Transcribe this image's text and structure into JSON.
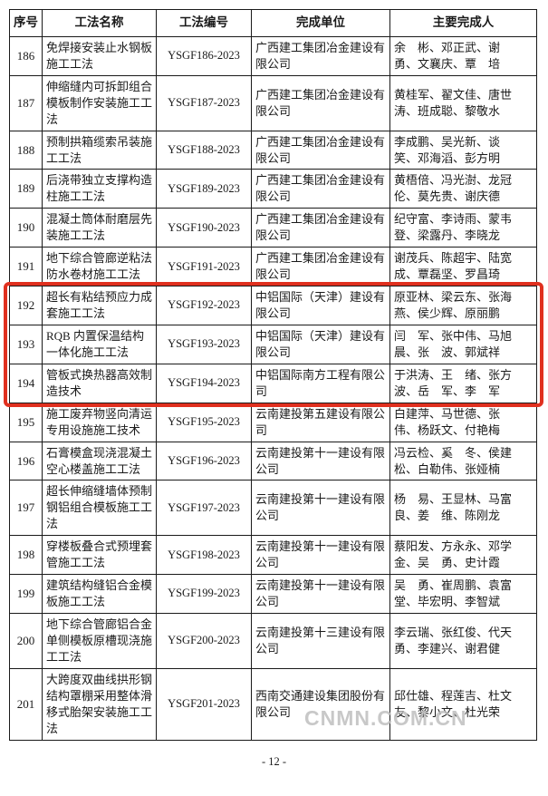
{
  "page": {
    "page_number": "- 12 -",
    "watermark": "CNMN.COM.CN",
    "highlight_color": "#e0301f"
  },
  "table": {
    "headers": [
      "序号",
      "工法名称",
      "工法编号",
      "完成单位",
      "主要完成人"
    ],
    "rows": [
      {
        "no": "186",
        "name": "免焊接安装止水钢板施工工法",
        "code": "YSGF186-2023",
        "unit": "广西建工集团冶金建设有限公司",
        "people": "余　彬、邓正武、谢　勇、文襄庆、覃　培",
        "highlighted": false
      },
      {
        "no": "187",
        "name": "伸缩缝内可拆卸组合模板制作安装施工工法",
        "code": "YSGF187-2023",
        "unit": "广西建工集团冶金建设有限公司",
        "people": "黄桂军、翟文佳、唐世涛、班成聪、黎敬水",
        "highlighted": false
      },
      {
        "no": "188",
        "name": "预制拱箱缆索吊装施工工法",
        "code": "YSGF188-2023",
        "unit": "广西建工集团冶金建设有限公司",
        "people": "李成鹏、吴光新、谈　笑、邓海滔、彭方明",
        "highlighted": false
      },
      {
        "no": "189",
        "name": "后浇带独立支撑构造柱施工工法",
        "code": "YSGF189-2023",
        "unit": "广西建工集团冶金建设有限公司",
        "people": "黄梧倍、冯光澍、龙冠伦、莫先贵、谢庆德",
        "highlighted": false
      },
      {
        "no": "190",
        "name": "混凝土筒体耐磨层先装施工工法",
        "code": "YSGF190-2023",
        "unit": "广西建工集团冶金建设有限公司",
        "people": "纪守富、李诗雨、蒙韦登、梁露丹、李晓龙",
        "highlighted": false
      },
      {
        "no": "191",
        "name": "地下综合管廊逆粘法防水卷材施工工法",
        "code": "YSGF191-2023",
        "unit": "广西建工集团冶金建设有限公司",
        "people": "谢茂兵、陈超宇、陆宽成、覃磊坚、罗昌琦",
        "highlighted": false
      },
      {
        "no": "192",
        "name": "超长有粘结预应力成套施工工法",
        "code": "YSGF192-2023",
        "unit": "中铝国际（天津）建设有限公司",
        "people": "原亚林、梁云东、张海燕、侯少辉、原丽鹏",
        "highlighted": true
      },
      {
        "no": "193",
        "name": "RQB 内置保温结构一体化施工工法",
        "code": "YSGF193-2023",
        "unit": "中铝国际（天津）建设有限公司",
        "people": "闫　军、张中伟、马旭晨、张　波、郭斌祥",
        "highlighted": true
      },
      {
        "no": "194",
        "name": "管板式换热器高效制造技术",
        "code": "YSGF194-2023",
        "unit": "中铝国际南方工程有限公司",
        "people": "于洪涛、王　绪、张方波、岳　军、李　军",
        "highlighted": true
      },
      {
        "no": "195",
        "name": "施工废弃物竖向清运专用设施施工技术",
        "code": "YSGF195-2023",
        "unit": "云南建投第五建设有限公司",
        "people": "白建萍、马世德、张　伟、杨跃文、付艳梅",
        "highlighted": false
      },
      {
        "no": "196",
        "name": "石膏模盒现浇混凝土空心楼盖施工工法",
        "code": "YSGF196-2023",
        "unit": "云南建投第十一建设有限公司",
        "people": "冯云检、奚　冬、侯建松、白勒伟、张娅楠",
        "highlighted": false
      },
      {
        "no": "197",
        "name": "超长伸缩缝墙体预制钢铝组合模板施工工法",
        "code": "YSGF197-2023",
        "unit": "云南建投第十一建设有限公司",
        "people": "杨　易、王显林、马富良、姜　维、陈刚龙",
        "highlighted": false
      },
      {
        "no": "198",
        "name": "穿楼板叠合式预埋套管施工工法",
        "code": "YSGF198-2023",
        "unit": "云南建投第十一建设有限公司",
        "people": "蔡阳发、方永永、邓学金、吴　勇、史计霞",
        "highlighted": false
      },
      {
        "no": "199",
        "name": "建筑结构缝铝合金模板施工工法",
        "code": "YSGF199-2023",
        "unit": "云南建投第十一建设有限公司",
        "people": "吴　勇、崔周鹏、袁富堂、毕宏明、李智斌",
        "highlighted": false
      },
      {
        "no": "200",
        "name": "地下综合管廊铝合金单侧模板原槽现浇施工工法",
        "code": "YSGF200-2023",
        "unit": "云南建投第十三建设有限公司",
        "people": "李云瑞、张红俊、代天勇、李建兴、谢君健",
        "highlighted": false
      },
      {
        "no": "201",
        "name": "大跨度双曲线拱形钢结构罩棚采用整体滑移式胎架安装施工工法",
        "code": "YSGF201-2023",
        "unit": "西南交通建设集团股份有限公司",
        "people": "邱仕雄、程莲吉、杜文友、黎小文、杜光荣",
        "highlighted": false
      }
    ]
  }
}
